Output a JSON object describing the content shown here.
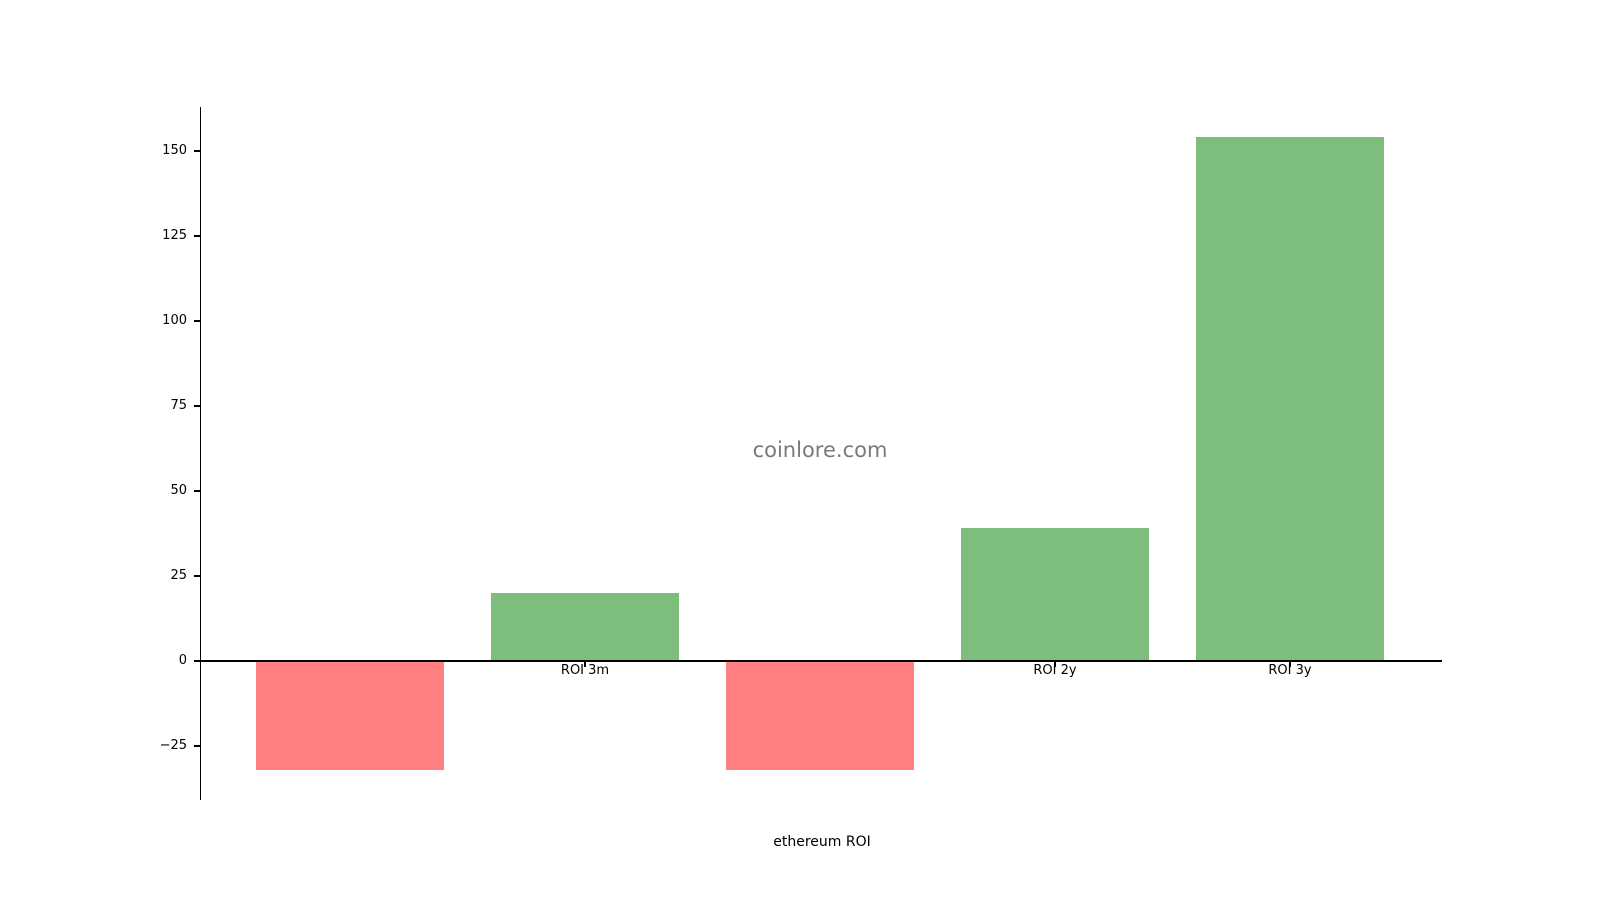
{
  "watermark": "coinlore.com",
  "colors": {
    "positive_bar": "#7dbe7d",
    "negative_bar": "#ff8080",
    "axis": "#000000",
    "tick_text": "#000000",
    "watermark_text": "#7a7a7a",
    "background": "#ffffff"
  },
  "chart_data": {
    "type": "bar",
    "title": "",
    "xlabel": "ethereum ROI",
    "ylabel": "",
    "categories": [
      "",
      "ROI 3m",
      "",
      "ROI 2y",
      "ROI 3y"
    ],
    "values": [
      -32,
      20,
      -32,
      39,
      154
    ],
    "yticks": [
      150,
      125,
      100,
      75,
      50,
      25,
      0,
      -25
    ],
    "ytick_labels": [
      "150",
      "125",
      "100",
      "75",
      "50",
      "25",
      "0",
      "−25"
    ],
    "ylim": [
      -41,
      163
    ],
    "grid": false,
    "legend": false,
    "annotations": [
      "coinlore.com"
    ]
  }
}
